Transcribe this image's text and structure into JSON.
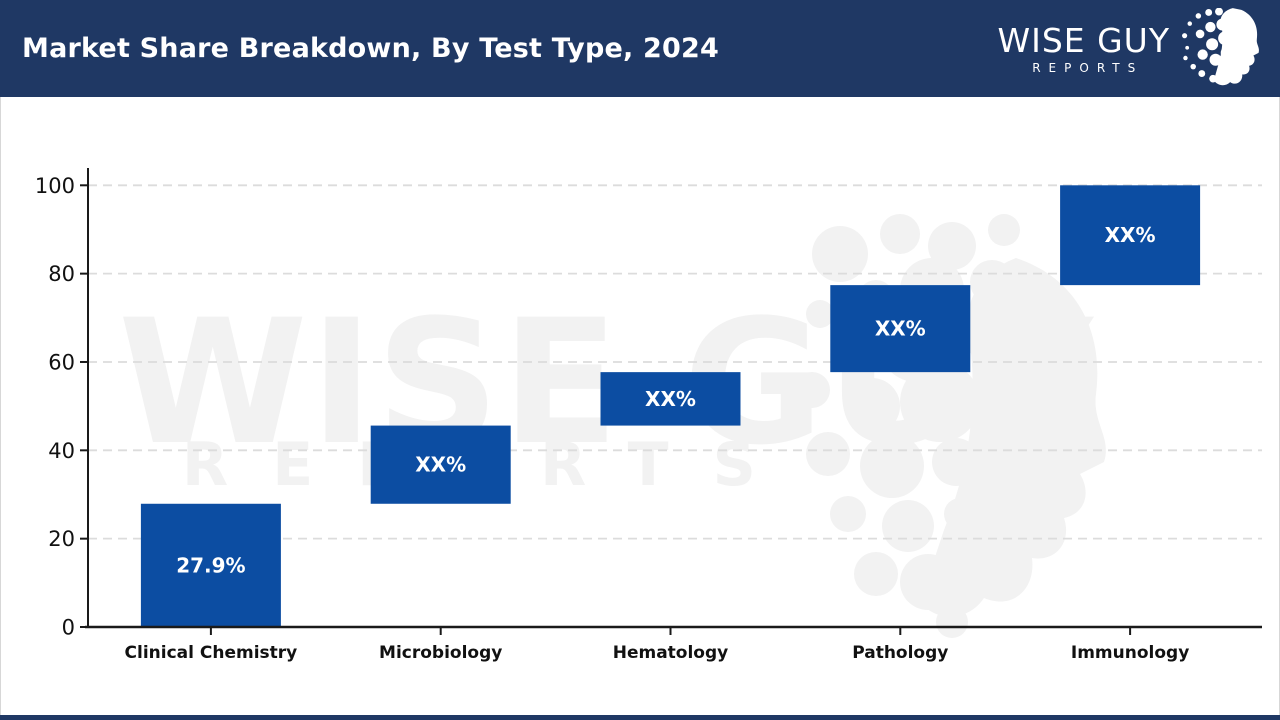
{
  "header": {
    "title": "Market Share Breakdown, By Test Type, 2024",
    "logo": {
      "line1": "WISE GUY",
      "line2": "REPORTS"
    }
  },
  "watermark": {
    "line1": "WISE GUY",
    "line2": "REPORTS"
  },
  "colors": {
    "header_bg": "#1f3864",
    "footer_bg": "#1f3864",
    "bar": "#0c4da2",
    "bar_label": "#ffffff",
    "grid": "#dcdcdc",
    "axis": "#1a1a1a",
    "tick_label": "#111111",
    "category_label": "#111111",
    "card_border": "#d7d7d7",
    "watermark": "#f2f2f2"
  },
  "chart_data": {
    "type": "bar",
    "subtype": "waterfall",
    "title": "Market Share Breakdown, By Test Type, 2024",
    "categories": [
      "Clinical Chemistry",
      "Microbiology",
      "Hematology",
      "Pathology",
      "Immunology"
    ],
    "segments": [
      {
        "category": "Clinical Chemistry",
        "start": 0,
        "end": 27.9,
        "label": "27.9%"
      },
      {
        "category": "Microbiology",
        "start": 27.9,
        "end": 45.6,
        "label": "XX%"
      },
      {
        "category": "Hematology",
        "start": 45.6,
        "end": 57.7,
        "label": "XX%"
      },
      {
        "category": "Pathology",
        "start": 57.7,
        "end": 77.4,
        "label": "XX%"
      },
      {
        "category": "Immunology",
        "start": 77.4,
        "end": 100,
        "label": "XX%"
      }
    ],
    "xlabel": "",
    "ylabel": "",
    "ylim": [
      0,
      100
    ],
    "yticks": [
      0,
      20,
      40,
      60,
      80,
      100
    ],
    "grid": "horizontal-dashed",
    "legend": null
  }
}
